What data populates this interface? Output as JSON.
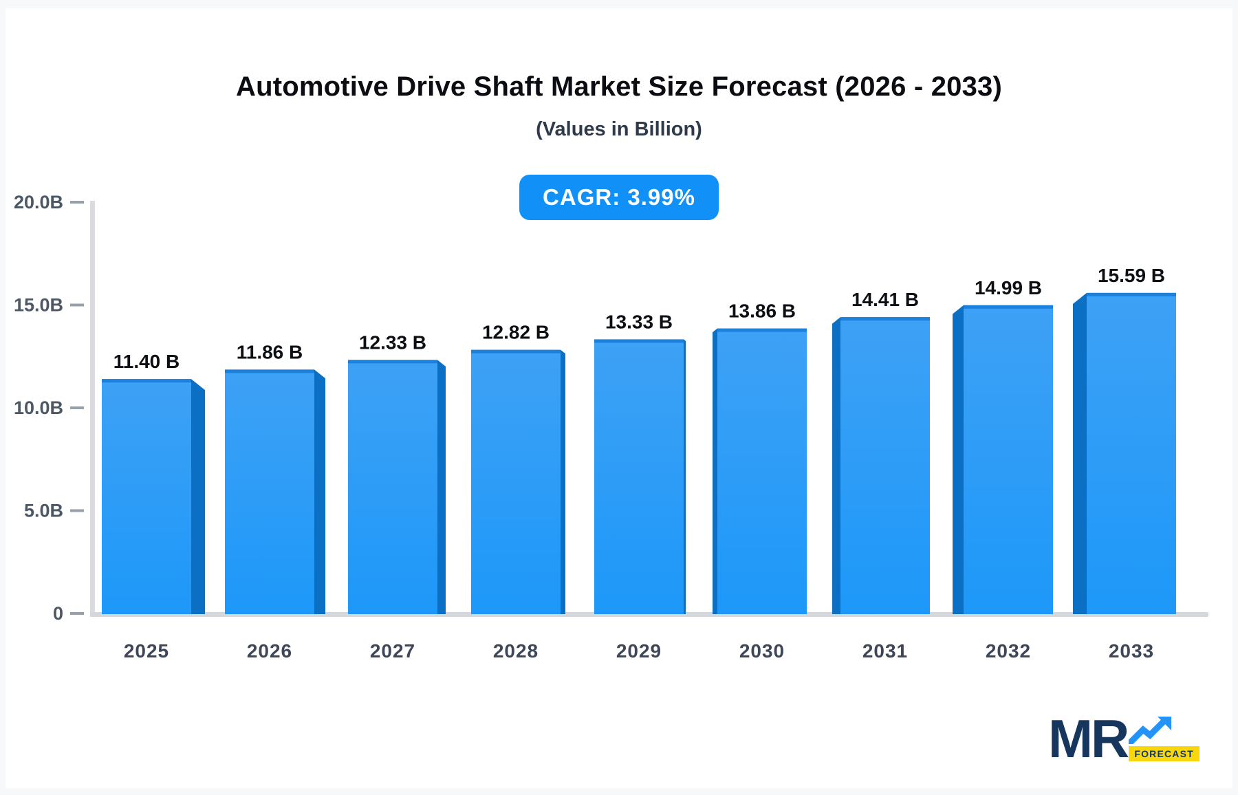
{
  "window": {
    "frame_bg": "#f7f8fa",
    "canvas_bg": "#ffffff"
  },
  "header": {
    "title": "Automotive Drive Shaft Market Size Forecast (2026 - 2033)",
    "subtitle": "(Values in Billion)"
  },
  "cagr_badge": {
    "label": "CAGR: 3.99%",
    "bg": "#1191f7",
    "text_color": "#ffffff"
  },
  "chart_data": {
    "type": "bar",
    "title": "Automotive Drive Shaft Market Size Forecast (2026 - 2033)",
    "subtitle": "(Values in Billion)",
    "categories": [
      "2025",
      "2026",
      "2027",
      "2028",
      "2029",
      "2030",
      "2031",
      "2032",
      "2033"
    ],
    "values": [
      11.4,
      11.86,
      12.33,
      12.82,
      13.33,
      13.86,
      14.41,
      14.99,
      15.59
    ],
    "value_labels": [
      "11.40 B",
      "11.86 B",
      "12.33 B",
      "12.82 B",
      "13.33 B",
      "13.86 B",
      "14.41 B",
      "14.99 B",
      "15.59 B"
    ],
    "unit": "Billion",
    "ylim": [
      0,
      20
    ],
    "yticks": [
      {
        "v": 0,
        "label": "0"
      },
      {
        "v": 5,
        "label": "5.0B"
      },
      {
        "v": 10,
        "label": "10.0B"
      },
      {
        "v": 15,
        "label": "15.0B"
      },
      {
        "v": 20,
        "label": "20.0B"
      }
    ],
    "grid": false,
    "legend": "none",
    "style": {
      "bar_front_top": "#3ea1f5",
      "bar_front_bottom": "#1d98f9",
      "bar_side": "#0b6fc4",
      "bar_lid": "#1c81dd",
      "axis_line": "#d9dbdf",
      "baseline": "#d4d7db",
      "tick_dash": "#98a1ab",
      "ytick_label_color": "#4d5866",
      "category_label_color": "#3d4759",
      "value_label_color": "#0c0f14",
      "effect": "pseudo-3d, vanishing point at center column"
    }
  },
  "logo": {
    "text": "MR",
    "tagline": "FORECAST",
    "text_color": "#17365d",
    "arrow_color": "#2493f7",
    "tag_bg": "#f8d70c"
  }
}
